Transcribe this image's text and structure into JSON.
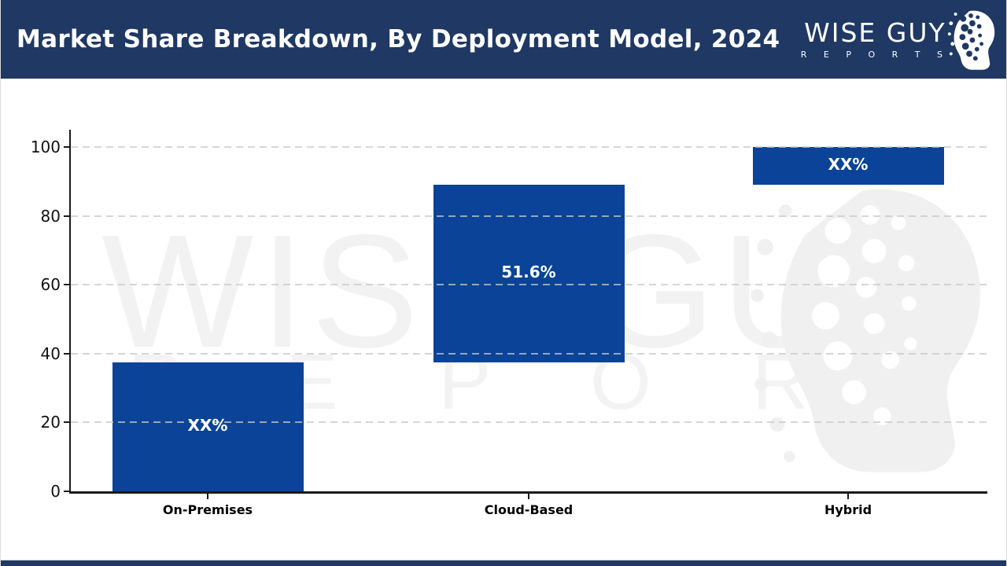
{
  "header": {
    "title": "Market Share Breakdown, By Deployment Model, 2024",
    "brand": {
      "line1": "WISE GUY",
      "line2": "R E P O R T S"
    }
  },
  "watermark": {
    "line1": "WISE GUY",
    "line2": "R E P O R T S"
  },
  "colors": {
    "header_bg": "#1f3864",
    "footer_bg": "#1f3864",
    "bar_fill": "#0a4397",
    "grid_line": "#d9d9d9",
    "axis_line": "#1a1a1a",
    "title_text": "#ffffff",
    "watermark": "#f2f2f2"
  },
  "chart_data": {
    "type": "bar",
    "subtype": "waterfall",
    "title": "Market Share Breakdown, By Deployment Model, 2024",
    "categories": [
      "On-Premises",
      "Cloud-Based",
      "Hybrid"
    ],
    "bars": [
      {
        "category": "On-Premises",
        "start": 0,
        "end": 37.5,
        "value": 37.5,
        "label": "XX%"
      },
      {
        "category": "Cloud-Based",
        "start": 37.5,
        "end": 89.1,
        "value": 51.6,
        "label": "51.6%"
      },
      {
        "category": "Hybrid",
        "start": 89.1,
        "end": 100,
        "value": 10.9,
        "label": "XX%"
      }
    ],
    "yticks": [
      0,
      20,
      40,
      60,
      80,
      100
    ],
    "ylim": [
      0,
      105
    ],
    "xlabel": "",
    "ylabel": "",
    "grid": "dashed-horizontal",
    "legend": "none"
  }
}
